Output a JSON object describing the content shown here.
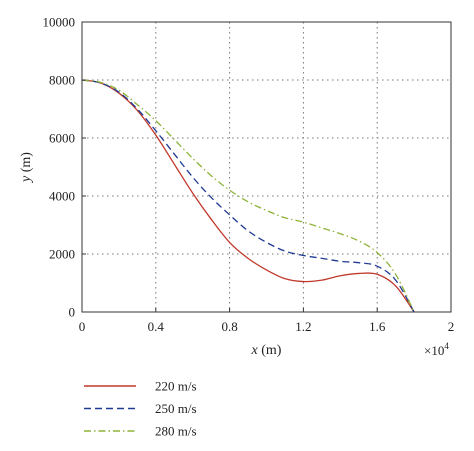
{
  "chart_data": {
    "type": "line",
    "xlabel": {
      "var": "x",
      "unit": " (m)"
    },
    "ylabel": {
      "var": "y",
      "unit": " (m)"
    },
    "x_multiplier": {
      "base": "×10",
      "exp": "4"
    },
    "xlim": [
      0,
      20000
    ],
    "ylim": [
      0,
      10000
    ],
    "x_ticks": [
      0,
      4000,
      8000,
      12000,
      16000,
      20000
    ],
    "x_tick_labels": [
      "0",
      "0.4",
      "0.8",
      "1.2",
      "1.6",
      "2"
    ],
    "y_ticks": [
      0,
      2000,
      4000,
      6000,
      8000,
      10000
    ],
    "y_tick_labels": [
      "0",
      "2000",
      "4000",
      "6000",
      "8000",
      "10000"
    ],
    "grid": true,
    "legend_position": "below",
    "series": [
      {
        "name": "220 m/s",
        "color": "#c0392b",
        "dash": "solid",
        "x": [
          0,
          1000,
          2000,
          3000,
          4000,
          5000,
          6000,
          7000,
          8000,
          9000,
          10000,
          11000,
          12000,
          13000,
          14000,
          15000,
          16000,
          17000,
          18000
        ],
        "y": [
          8000,
          7900,
          7550,
          6950,
          6100,
          5100,
          4100,
          3200,
          2400,
          1850,
          1450,
          1150,
          1050,
          1100,
          1250,
          1330,
          1300,
          900,
          0
        ]
      },
      {
        "name": "250 m/s",
        "color": "#1f3a93",
        "dash": "dashed",
        "x": [
          0,
          1000,
          2000,
          3000,
          4000,
          5000,
          6000,
          7000,
          8000,
          9000,
          10000,
          11000,
          12000,
          13000,
          14000,
          15000,
          16000,
          17000,
          18000
        ],
        "y": [
          8000,
          7900,
          7580,
          7000,
          6250,
          5450,
          4650,
          3950,
          3350,
          2800,
          2400,
          2100,
          1950,
          1850,
          1750,
          1700,
          1580,
          1100,
          0
        ]
      },
      {
        "name": "280 m/s",
        "color": "#8fb339",
        "dash": "dashdot",
        "x": [
          0,
          1000,
          2000,
          3000,
          4000,
          5000,
          6000,
          7000,
          8000,
          9000,
          10000,
          11000,
          12000,
          13000,
          14000,
          15000,
          16000,
          17000,
          18000
        ],
        "y": [
          8000,
          7920,
          7650,
          7150,
          6600,
          5950,
          5300,
          4700,
          4200,
          3800,
          3500,
          3250,
          3100,
          2900,
          2700,
          2450,
          2050,
          1300,
          0
        ]
      }
    ]
  }
}
